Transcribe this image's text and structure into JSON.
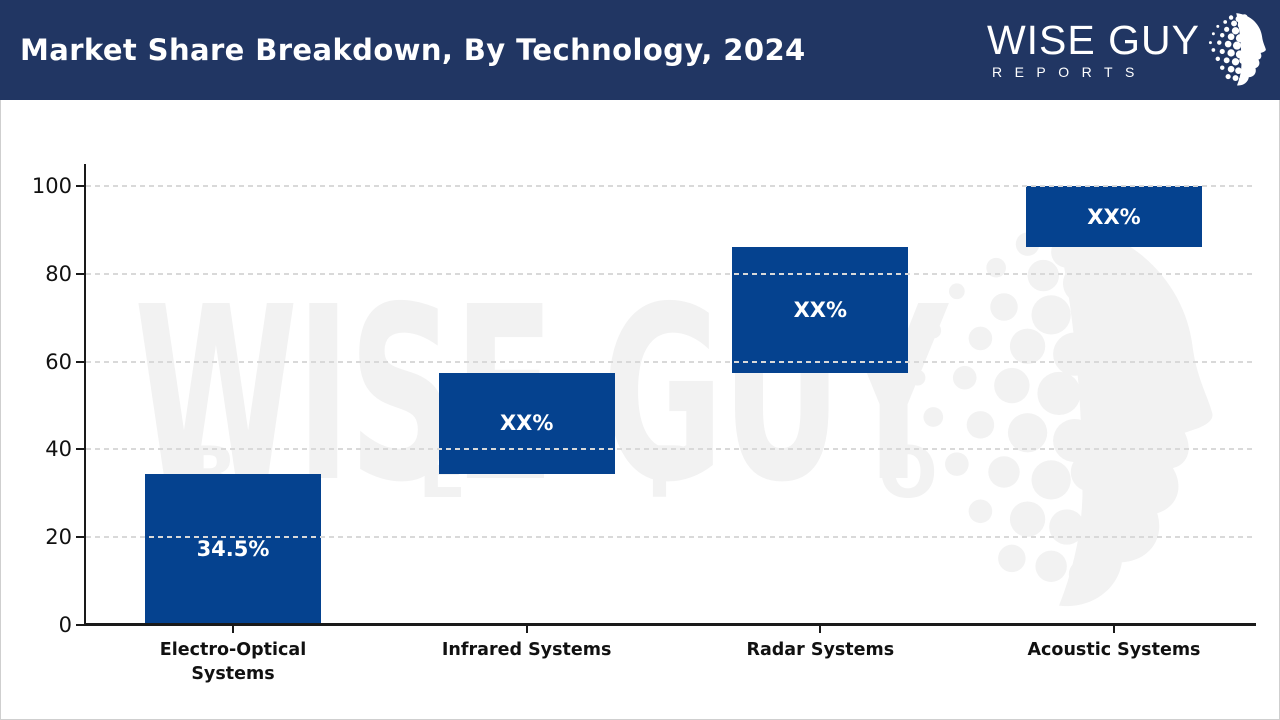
{
  "header": {
    "title": "Market Share Breakdown, By Technology, 2024",
    "background_color": "#213663",
    "text_color": "#ffffff",
    "logo": {
      "line1": "WISE GUY",
      "line2": "REPORTS",
      "face_icon": "dotted-head-profile-icon"
    }
  },
  "watermark": {
    "line1": "WISE GUY",
    "line2": "R E P O R T S",
    "color": "#f2f2f2",
    "face_icon": "dotted-head-profile-icon"
  },
  "chart_data": {
    "type": "bar",
    "subtype": "waterfall",
    "title": "Market Share Breakdown, By Technology, 2024",
    "categories": [
      "Electro-Optical\nSystems",
      "Infrared Systems",
      "Radar Systems",
      "Acoustic Systems"
    ],
    "segments": [
      {
        "category": "Electro-Optical Systems",
        "start": 0,
        "end": 34.5,
        "label": "34.5%"
      },
      {
        "category": "Infrared Systems",
        "start": 34.5,
        "end": 57.5,
        "label": "XX%"
      },
      {
        "category": "Radar Systems",
        "start": 57.5,
        "end": 86,
        "label": "XX%"
      },
      {
        "category": "Acoustic Systems",
        "start": 86,
        "end": 100,
        "label": "XX%"
      }
    ],
    "xlabel": "",
    "ylabel": "",
    "ylim": [
      0,
      100
    ],
    "yticks": [
      0,
      20,
      40,
      60,
      80,
      100
    ],
    "grid": "horizontal-dashed",
    "legend": "none",
    "bar_color": "#05428f",
    "bar_label_color": "#ffffff",
    "axis_color": "#1a1a1a",
    "gridline_color": "#d9d9d9",
    "border_color": "#cfcfcf"
  }
}
